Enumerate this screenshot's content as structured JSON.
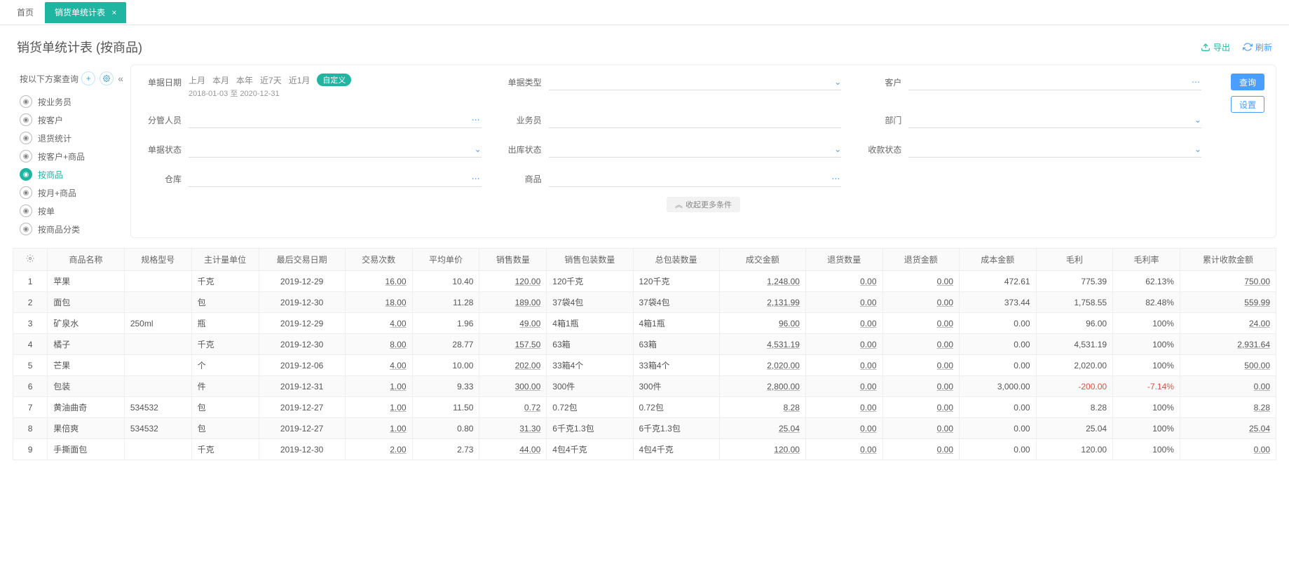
{
  "tabs": {
    "home": "首页",
    "current": "销货单统计表"
  },
  "page_title": "销货单统计表 (按商品)",
  "header_actions": {
    "export": "导出",
    "refresh": "刷新"
  },
  "sidebar": {
    "title": "按以下方案查询",
    "items": [
      {
        "label": "按业务员",
        "icon": "user"
      },
      {
        "label": "按客户",
        "icon": "user"
      },
      {
        "label": "退货统计",
        "icon": "chart"
      },
      {
        "label": "按客户+商品",
        "icon": "grid"
      },
      {
        "label": "按商品",
        "icon": "product",
        "active": true
      },
      {
        "label": "按月+商品",
        "icon": "chart"
      },
      {
        "label": "按单",
        "icon": "doc"
      },
      {
        "label": "按商品分类",
        "icon": "tree"
      }
    ]
  },
  "filters": {
    "date": {
      "label": "单据日期",
      "links": [
        "上月",
        "本月",
        "本年",
        "近7天",
        "近1月"
      ],
      "custom": "自定义",
      "range": "2018-01-03 至 2020-12-31"
    },
    "doc_type": {
      "label": "单据类型"
    },
    "customer": {
      "label": "客户"
    },
    "manager": {
      "label": "分管人员"
    },
    "salesperson": {
      "label": "业务员"
    },
    "dept": {
      "label": "部门"
    },
    "doc_status": {
      "label": "单据状态"
    },
    "out_status": {
      "label": "出库状态"
    },
    "pay_status": {
      "label": "收款状态"
    },
    "warehouse": {
      "label": "仓库"
    },
    "product": {
      "label": "商品"
    }
  },
  "buttons": {
    "query": "查询",
    "setting": "设置"
  },
  "collapse_text": "收起更多条件",
  "table": {
    "columns": [
      "商品名称",
      "规格型号",
      "主计量单位",
      "最后交易日期",
      "交易次数",
      "平均单价",
      "销售数量",
      "销售包装数量",
      "总包装数量",
      "成交金额",
      "退货数量",
      "退货金额",
      "成本金额",
      "毛利",
      "毛利率",
      "累计收款金额"
    ],
    "rows": [
      {
        "idx": "1",
        "name": "苹果",
        "spec": "",
        "unit": "千克",
        "last": "2019-12-29",
        "times": "16.00",
        "avg": "10.40",
        "qty": "120.00",
        "pack": "120千克",
        "tpack": "120千克",
        "amt": "1,248.00",
        "ret_qty": "0.00",
        "ret_amt": "0.00",
        "cost": "472.61",
        "gross": "775.39",
        "rate": "62.13%",
        "paid": "750.00"
      },
      {
        "idx": "2",
        "name": "面包",
        "spec": "",
        "unit": "包",
        "last": "2019-12-30",
        "times": "18.00",
        "avg": "11.28",
        "qty": "189.00",
        "pack": "37袋4包",
        "tpack": "37袋4包",
        "amt": "2,131.99",
        "ret_qty": "0.00",
        "ret_amt": "0.00",
        "cost": "373.44",
        "gross": "1,758.55",
        "rate": "82.48%",
        "paid": "559.99"
      },
      {
        "idx": "3",
        "name": "矿泉水",
        "spec": "250ml",
        "unit": "瓶",
        "last": "2019-12-29",
        "times": "4.00",
        "avg": "1.96",
        "qty": "49.00",
        "pack": "4箱1瓶",
        "tpack": "4箱1瓶",
        "amt": "96.00",
        "ret_qty": "0.00",
        "ret_amt": "0.00",
        "cost": "0.00",
        "gross": "96.00",
        "rate": "100%",
        "paid": "24.00"
      },
      {
        "idx": "4",
        "name": "橘子",
        "spec": "",
        "unit": "千克",
        "last": "2019-12-30",
        "times": "8.00",
        "avg": "28.77",
        "qty": "157.50",
        "pack": "63箱",
        "tpack": "63箱",
        "amt": "4,531.19",
        "ret_qty": "0.00",
        "ret_amt": "0.00",
        "cost": "0.00",
        "gross": "4,531.19",
        "rate": "100%",
        "paid": "2,931.64"
      },
      {
        "idx": "5",
        "name": "芒果",
        "spec": "",
        "unit": "个",
        "last": "2019-12-06",
        "times": "4.00",
        "avg": "10.00",
        "qty": "202.00",
        "pack": "33箱4个",
        "tpack": "33箱4个",
        "amt": "2,020.00",
        "ret_qty": "0.00",
        "ret_amt": "0.00",
        "cost": "0.00",
        "gross": "2,020.00",
        "rate": "100%",
        "paid": "500.00"
      },
      {
        "idx": "6",
        "name": "包装",
        "spec": "",
        "unit": "件",
        "last": "2019-12-31",
        "times": "1.00",
        "avg": "9.33",
        "qty": "300.00",
        "pack": "300件",
        "tpack": "300件",
        "amt": "2,800.00",
        "ret_qty": "0.00",
        "ret_amt": "0.00",
        "cost": "3,000.00",
        "gross": "-200.00",
        "rate": "-7.14%",
        "paid": "0.00",
        "neg": true
      },
      {
        "idx": "7",
        "name": "黄油曲奇",
        "spec": "534532",
        "unit": "包",
        "last": "2019-12-27",
        "times": "1.00",
        "avg": "11.50",
        "qty": "0.72",
        "pack": "0.72包",
        "tpack": "0.72包",
        "amt": "8.28",
        "ret_qty": "0.00",
        "ret_amt": "0.00",
        "cost": "0.00",
        "gross": "8.28",
        "rate": "100%",
        "paid": "8.28"
      },
      {
        "idx": "8",
        "name": "果倍爽",
        "spec": "534532",
        "unit": "包",
        "last": "2019-12-27",
        "times": "1.00",
        "avg": "0.80",
        "qty": "31.30",
        "pack": "6千克1.3包",
        "tpack": "6千克1.3包",
        "amt": "25.04",
        "ret_qty": "0.00",
        "ret_amt": "0.00",
        "cost": "0.00",
        "gross": "25.04",
        "rate": "100%",
        "paid": "25.04"
      },
      {
        "idx": "9",
        "name": "手撕面包",
        "spec": "",
        "unit": "千克",
        "last": "2019-12-30",
        "times": "2.00",
        "avg": "2.73",
        "qty": "44.00",
        "pack": "4包4千克",
        "tpack": "4包4千克",
        "amt": "120.00",
        "ret_qty": "0.00",
        "ret_amt": "0.00",
        "cost": "0.00",
        "gross": "120.00",
        "rate": "100%",
        "paid": "0.00"
      }
    ]
  },
  "colors": {
    "primary": "#1fb5a1",
    "link": "#4a9eff",
    "neg": "#e74c3c"
  }
}
